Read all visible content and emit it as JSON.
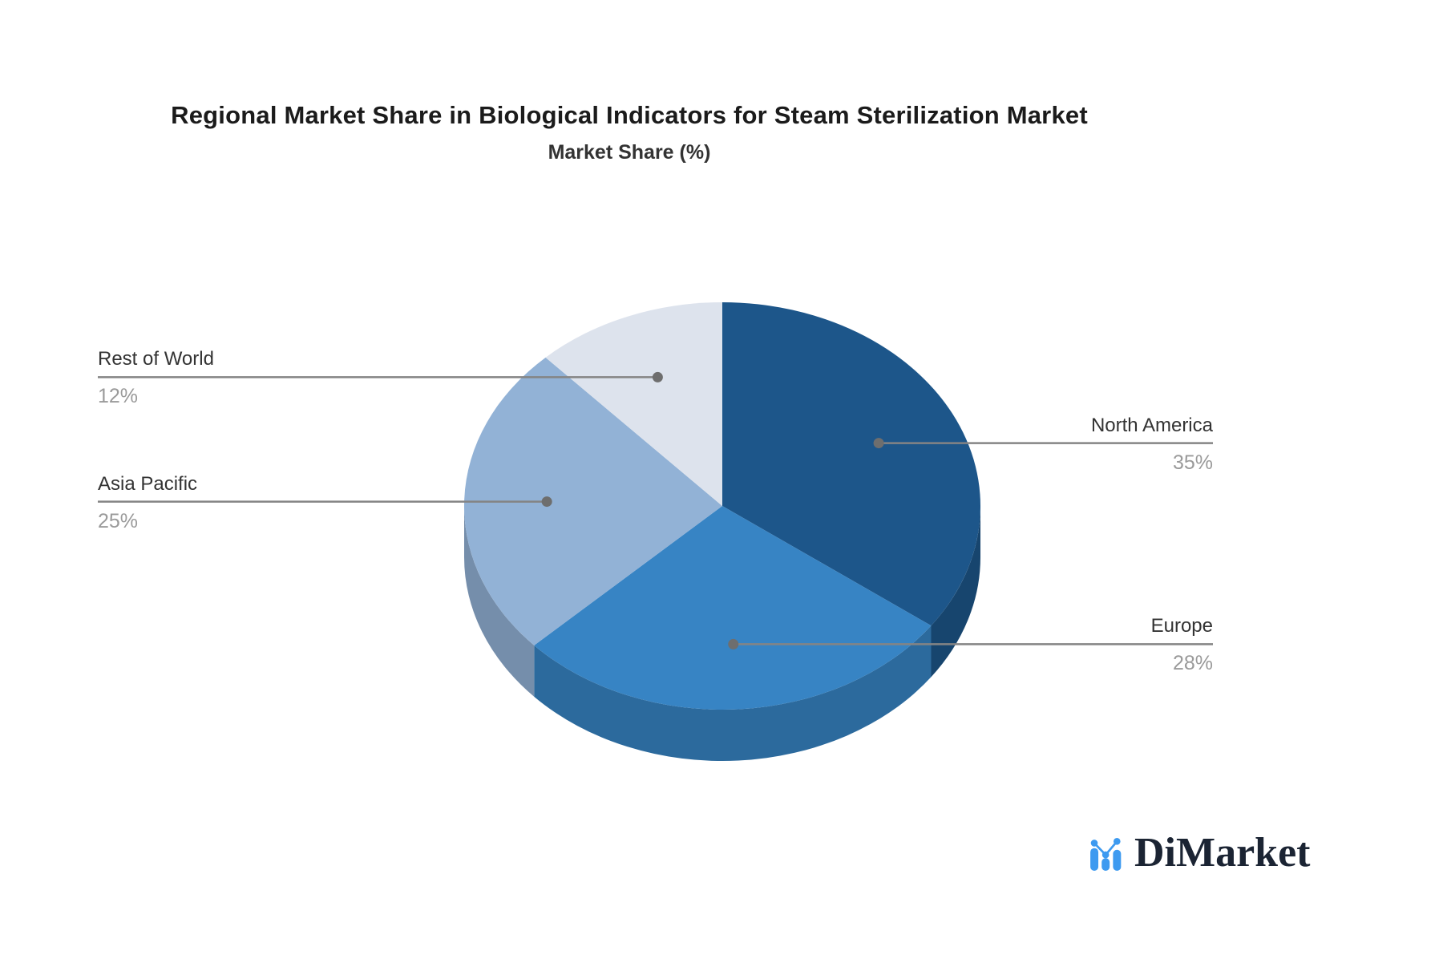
{
  "header": {
    "title": "Regional Market Share in Biological Indicators for Steam Sterilization Market",
    "subtitle": "Market Share (%)"
  },
  "branding": {
    "logo_text": "DiMarket",
    "logo_icon": "bar-line-chart-icon",
    "logo_text_color": "#1b2433",
    "logo_accent_color": "#3d9af0"
  },
  "chart_data": {
    "type": "pie",
    "style": "3d",
    "title": "Regional Market Share in Biological Indicators for Steam Sterilization Market",
    "subtitle": "Market Share (%)",
    "unit": "%",
    "direction": "clockwise",
    "start_angle_deg": 0,
    "legend": "none",
    "labels": [
      "North America",
      "Europe",
      "Asia Pacific",
      "Rest of World"
    ],
    "values": [
      35,
      28,
      25,
      12
    ],
    "display_labels": [
      "35%",
      "28%",
      "25%",
      "12%"
    ],
    "colors": [
      "#1d568a",
      "#3784c4",
      "#92b2d6",
      "#dde3ed"
    ],
    "label_text_color": "#333333",
    "label_value_color": "#9a9a9a",
    "leader_line_color": "#848484",
    "leader_dot_color": "#6e6e6e"
  }
}
